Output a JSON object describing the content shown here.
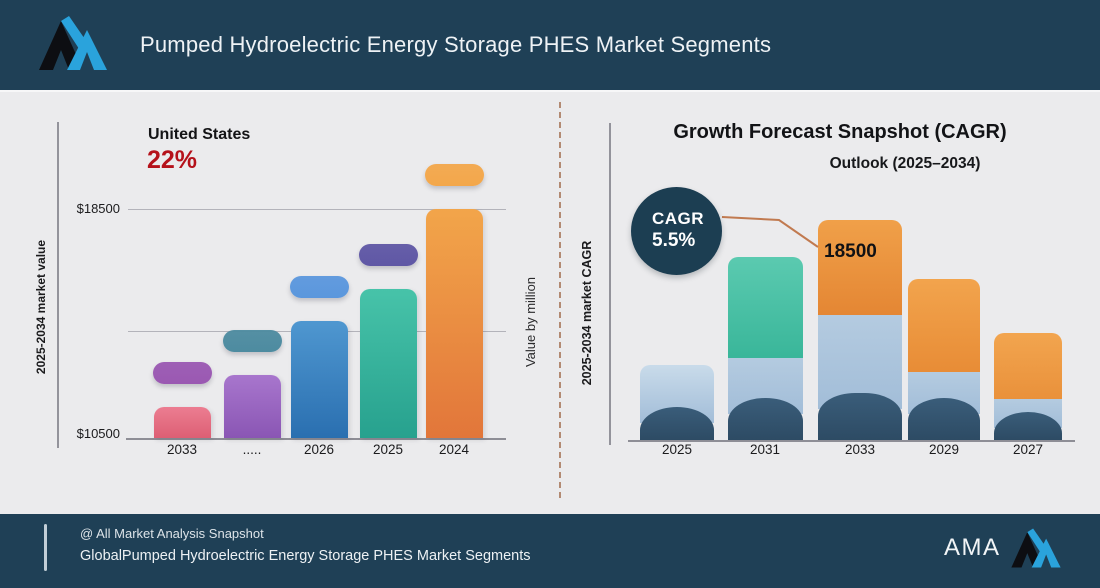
{
  "header": {
    "title": "Pumped Hydroelectric Energy Storage PHES Market Segments"
  },
  "divider": {
    "label": "Value by million"
  },
  "chart_data": [
    {
      "type": "bar",
      "panel": "left",
      "title": "United States",
      "highlight": "22%",
      "ylabel": "2025-2034 market value",
      "yticks": [
        "$18500",
        "$10500"
      ],
      "ylim": [
        10500,
        18500
      ],
      "grid": "on",
      "categories": [
        "2033",
        ".....",
        "2026",
        "2025",
        "2024"
      ],
      "values": [
        11600,
        12700,
        14600,
        15700,
        18500
      ],
      "bars": [
        {
          "label": "2033",
          "value": 11600,
          "color": [
            "#ec7d91",
            "#dd5f74"
          ],
          "cap_color": "#9a58b2"
        },
        {
          "label": ".....",
          "value": 12700,
          "color": [
            "#a876cd",
            "#8a56b4"
          ],
          "cap_color": "#4d8ba0"
        },
        {
          "label": "2026",
          "value": 14600,
          "color": [
            "#4f97d0",
            "#2a6fb0"
          ],
          "cap_color": "#5b97dd"
        },
        {
          "label": "2025",
          "value": 15700,
          "color": [
            "#47c3a9",
            "#27a18e"
          ],
          "cap_color": "#5f57a5"
        },
        {
          "label": "2024",
          "value": 18500,
          "color": [
            "#f2a54a",
            "#e2763a"
          ],
          "cap_color": "#f3a74b"
        }
      ]
    },
    {
      "type": "stacked-bar",
      "panel": "right",
      "title": "Growth Forecast Snapshot (CAGR)",
      "subtitle": "Outlook (2025–2034)",
      "ylabel": "2025-2034 market CAGR",
      "badge": {
        "label": "CAGR",
        "value": "5.5%"
      },
      "annotation": {
        "text": "18500",
        "category": "2033"
      },
      "categories": [
        "2025",
        "2031",
        "2033",
        "2029",
        "2027"
      ],
      "totals": [
        6300,
        15400,
        18500,
        13550,
        9000
      ],
      "bars": [
        {
          "label": "2025",
          "segments": [
            {
              "name": "base",
              "value": 2800,
              "color": [
                "#3a5d7a",
                "#2d4b64"
              ]
            },
            {
              "name": "mid",
              "value": 3500,
              "color": [
                "#c9dbea",
                "#a2bdd8"
              ]
            }
          ]
        },
        {
          "label": "2031",
          "segments": [
            {
              "name": "base",
              "value": 3500,
              "color": [
                "#3a5d7a",
                "#2d4b64"
              ]
            },
            {
              "name": "mid",
              "value": 3400,
              "color": [
                "#b4cbe0",
                "#a2bdd8"
              ]
            },
            {
              "name": "top",
              "value": 8500,
              "color": [
                "#5bcab0",
                "#34b396"
              ]
            }
          ]
        },
        {
          "label": "2033",
          "segments": [
            {
              "name": "base",
              "value": 3950,
              "color": [
                "#3a5d7a",
                "#2d4b64"
              ]
            },
            {
              "name": "mid",
              "value": 6550,
              "color": [
                "#b4cbe0",
                "#a2bdd8"
              ]
            },
            {
              "name": "top",
              "value": 8000,
              "color": [
                "#f0a049",
                "#e28230"
              ]
            }
          ]
        },
        {
          "label": "2029",
          "segments": [
            {
              "name": "base",
              "value": 3500,
              "color": [
                "#3a5d7a",
                "#2d4b64"
              ]
            },
            {
              "name": "mid",
              "value": 2200,
              "color": [
                "#b4cbe0",
                "#a2bdd8"
              ]
            },
            {
              "name": "top",
              "value": 7850,
              "color": [
                "#f2a44d",
                "#e68832"
              ]
            }
          ]
        },
        {
          "label": "2027",
          "segments": [
            {
              "name": "base",
              "value": 2350,
              "color": [
                "#3a5d7a",
                "#2d4b64"
              ]
            },
            {
              "name": "mid",
              "value": 1100,
              "color": [
                "#b4cbe0",
                "#a2bdd8"
              ]
            },
            {
              "name": "top",
              "value": 5550,
              "color": [
                "#f2a54f",
                "#e78c36"
              ]
            }
          ]
        }
      ]
    }
  ],
  "footer": {
    "line1": "@ All Market Analysis Snapshot",
    "line2": "GlobalPumped Hydroelectric Energy Storage PHES Market Segments",
    "brand": "AMA"
  },
  "colors": {
    "band": "#1f4056",
    "background": "#ebebed",
    "highlight_red": "#b5121b",
    "badge_navy": "#1c3e52",
    "logo_blue": "#2aa3dc",
    "connector_tan": "#c17a50"
  }
}
